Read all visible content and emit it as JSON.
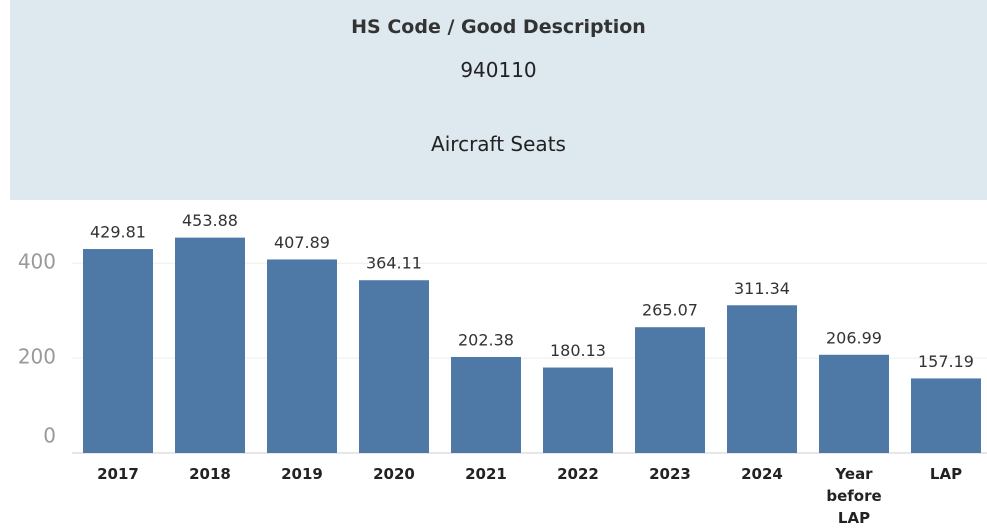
{
  "header": {
    "title": "HS Code / Good Description",
    "code": "940110",
    "description": "Aircraft Seats"
  },
  "chart_data": {
    "type": "bar",
    "categories": [
      "2017",
      "2018",
      "2019",
      "2020",
      "2021",
      "2022",
      "2023",
      "2024",
      "Year before LAP",
      "LAP"
    ],
    "values": [
      429.81,
      453.88,
      407.89,
      364.11,
      202.38,
      180.13,
      265.07,
      311.34,
      206.99,
      157.19
    ],
    "color": "#4e79a7",
    "ylim": [
      0,
      510
    ],
    "yticks": [
      0,
      200,
      400
    ],
    "grid": true
  }
}
